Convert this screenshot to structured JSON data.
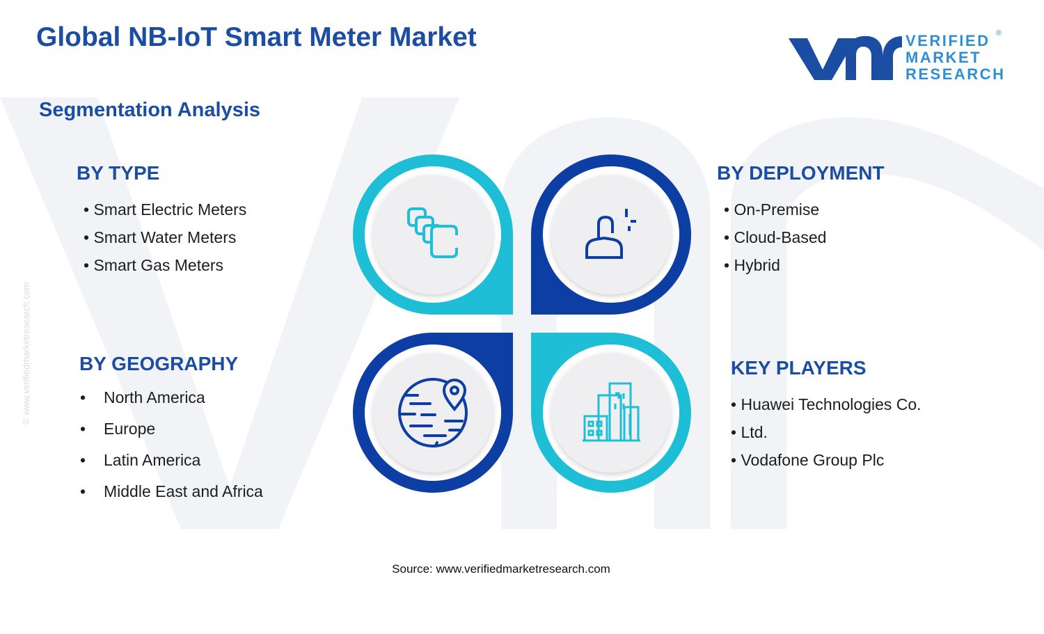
{
  "header": {
    "title": "Global NB-IoT Smart Meter Market",
    "subtitle": "Segmentation Analysis"
  },
  "logo": {
    "lines": [
      "VERIFIED",
      "MARKET",
      "RESEARCH"
    ],
    "mark": "®"
  },
  "watermark": "© www.verifiedmarketresearch.com",
  "segments": [
    {
      "title": "BY TYPE",
      "items": [
        "Smart Electric Meters",
        "Smart Water Meters",
        "Smart Gas Meters"
      ]
    },
    {
      "title": "BY DEPLOYMENT",
      "items": [
        "On-Premise",
        "Cloud-Based",
        "Hybrid"
      ]
    },
    {
      "title": "BY GEOGRAPHY",
      "items": [
        "North America",
        "Europe",
        "Latin America",
        "Middle East and Africa"
      ]
    },
    {
      "title": "KEY PLAYERS",
      "items": [
        "Huawei Technologies Co.",
        "Ltd.",
        "Vodafone Group Plc"
      ]
    }
  ],
  "source": "Source: www.verifiedmarketresearch.com"
}
